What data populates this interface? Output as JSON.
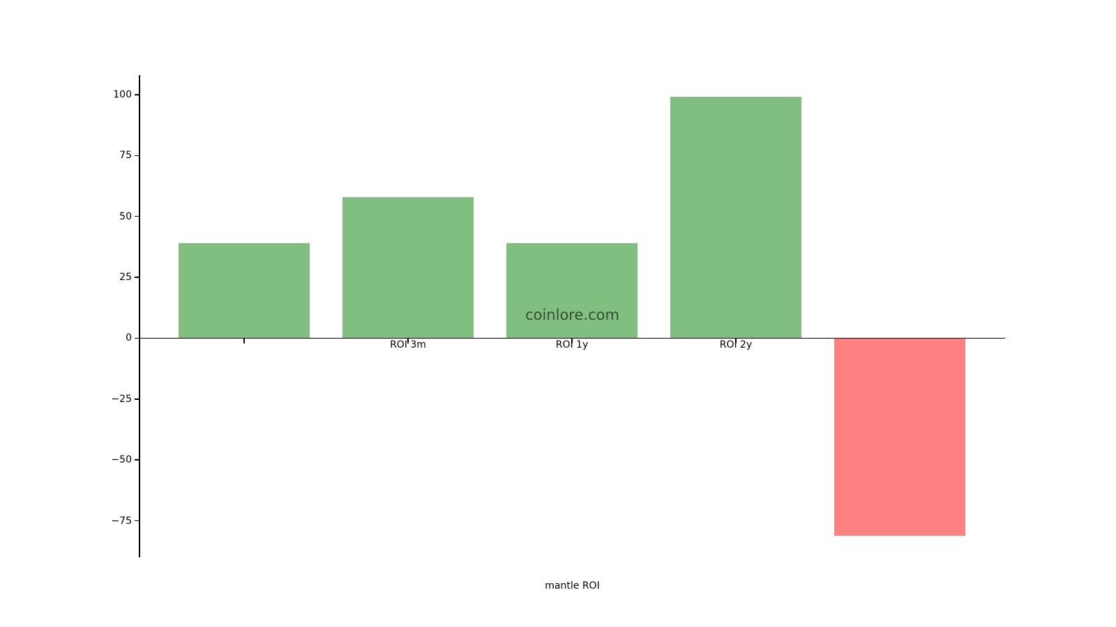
{
  "chart_data": {
    "type": "bar",
    "categories": [
      "",
      "ROI 3m",
      "ROI 1y",
      "ROI 2y",
      ""
    ],
    "values": [
      39,
      58,
      39,
      99,
      -81
    ],
    "bar_colors": [
      "#80bf80",
      "#80bf80",
      "#80bf80",
      "#80bf80",
      "#ff8080"
    ],
    "positive_color": "#80bf80",
    "negative_color": "#ff8080",
    "title": "",
    "xlabel": "mantle ROI",
    "ylabel": "",
    "yticks": [
      100,
      75,
      50,
      25,
      0,
      -25,
      -50,
      -75
    ],
    "ylim": [
      -90,
      108
    ],
    "grid": false,
    "legend_position": "none",
    "axis_color": "#000000",
    "background_color": "#ffffff"
  },
  "watermark": {
    "text": "coinlore.com"
  }
}
